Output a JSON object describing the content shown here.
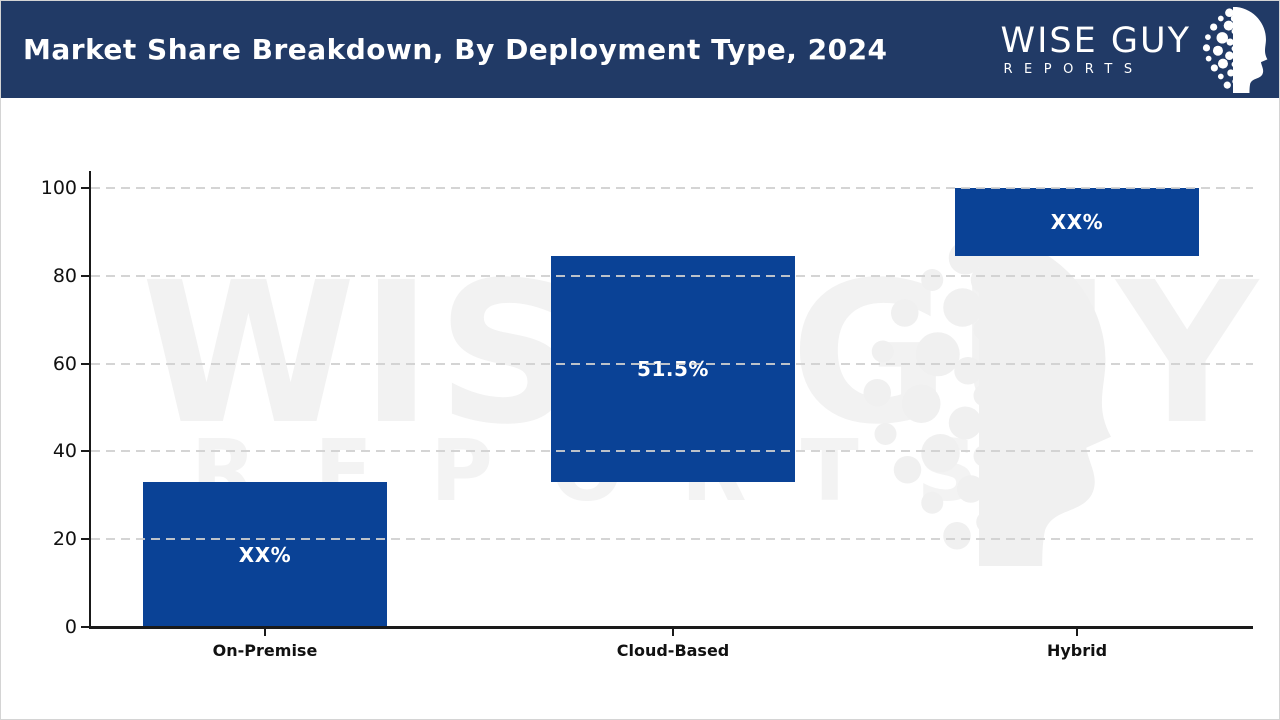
{
  "page": {
    "background": "#ffffff",
    "border_color": "#d4d4d4"
  },
  "header": {
    "bg_color": "#213a66",
    "title": "Market Share Breakdown, By Deployment Type, 2024",
    "logo": {
      "line1": "WISE GUY",
      "line2": "REPORTS"
    }
  },
  "watermark": {
    "line1": "WISE GUY",
    "line2": "REPORTS"
  },
  "chart_data": {
    "type": "bar",
    "subtype": "floating segment bars (market share waterfall, segments sum to 100%)",
    "title": "Market Share Breakdown, By Deployment Type, 2024",
    "categories": [
      "On-Premise",
      "Cloud-Based",
      "Hybrid"
    ],
    "segments": [
      {
        "category": "On-Premise",
        "start": 0,
        "end": 33,
        "label": "XX%"
      },
      {
        "category": "Cloud-Based",
        "start": 33,
        "end": 84.5,
        "label": "51.5%",
        "value": 51.5
      },
      {
        "category": "Hybrid",
        "start": 84.5,
        "end": 100,
        "label": "XX%"
      }
    ],
    "xlabel": "",
    "ylabel": "",
    "ylim": [
      0,
      105
    ],
    "yticks": [
      "0",
      "20",
      "40",
      "60",
      "80",
      "100"
    ],
    "ytick_values": [
      0,
      20,
      40,
      60,
      80,
      100
    ],
    "grid": "horizontal dashed gridlines, drawn over bars",
    "legend": "none",
    "bar_color": "#0a4296",
    "bar_label_color": "#ffffff",
    "axis_color": "#1a1a1a",
    "grid_color": "#d0d0d0",
    "header_color": "#213a66"
  }
}
